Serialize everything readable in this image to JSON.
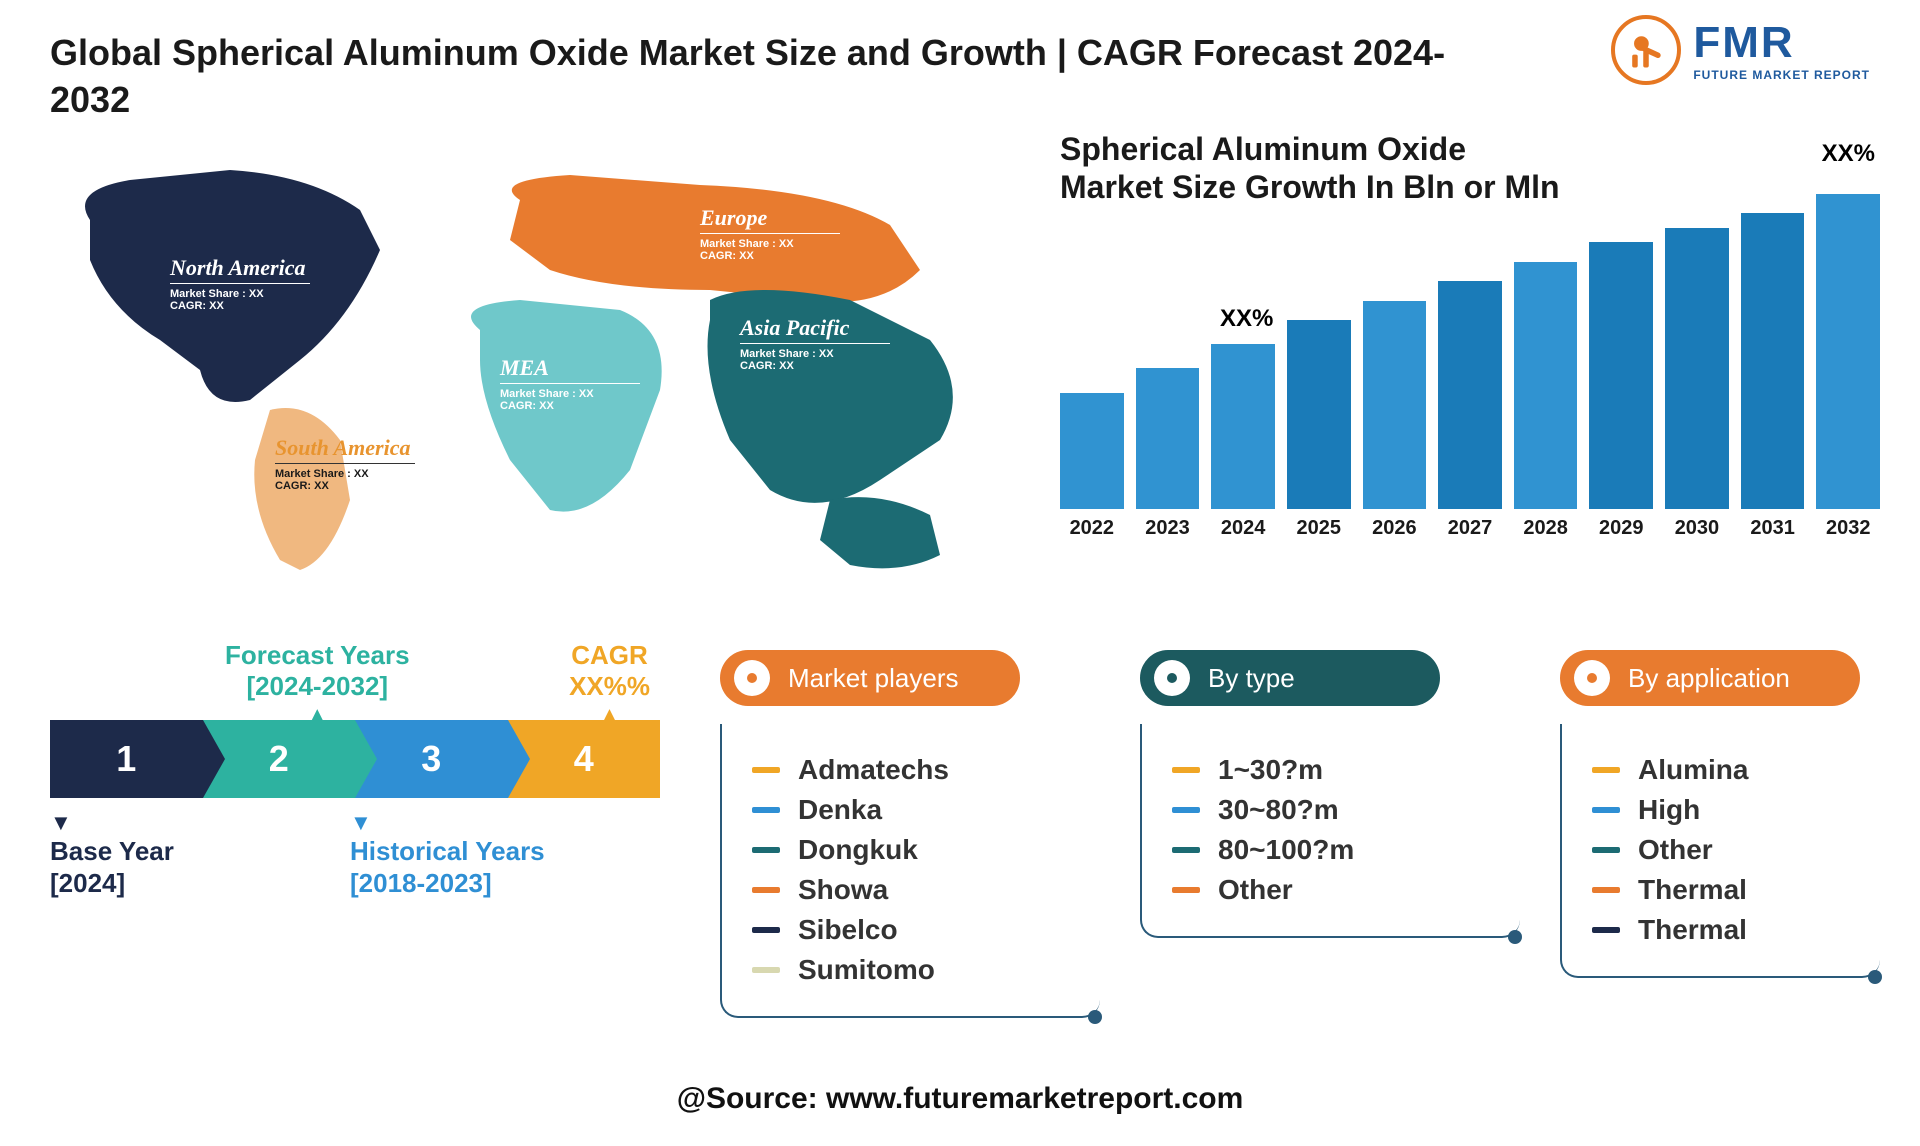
{
  "title": "Global Spherical Aluminum Oxide  Market Size and Growth | CAGR Forecast 2024-2032",
  "logo": {
    "abbr": "FMR",
    "full": "FUTURE MARKET REPORT",
    "accent": "#e67722",
    "text_color": "#1f5a9e"
  },
  "map": {
    "region_label_ms": "Market Share : XX",
    "region_label_cagr": "CAGR: XX",
    "regions": [
      {
        "name": "North America",
        "color": "#1d2a4a"
      },
      {
        "name": "South America",
        "color": "#f0b880"
      },
      {
        "name": "Europe",
        "color": "#e87b2f"
      },
      {
        "name": "MEA",
        "color": "#6fc8ca"
      },
      {
        "name": "Asia Pacific",
        "color": "#1c6b73"
      }
    ]
  },
  "bar_chart": {
    "title": "Spherical Aluminum Oxide Market Size Growth In Bln or Mln",
    "years": [
      "2022",
      "2023",
      "2024",
      "2025",
      "2026",
      "2027",
      "2028",
      "2029",
      "2030",
      "2031",
      "2032"
    ],
    "values": [
      120,
      145,
      170,
      195,
      215,
      235,
      255,
      275,
      290,
      305,
      325
    ],
    "colors": [
      "#3093d1",
      "#3093d1",
      "#3093d1",
      "#1a7bb8",
      "#3093d1",
      "#1a7bb8",
      "#3093d1",
      "#1a7bb8",
      "#1a7bb8",
      "#1a7bb8",
      "#3093d1"
    ],
    "max": 330,
    "callout_2024": "XX%",
    "callout_2032": "XX%",
    "label_fontsize": 20,
    "label_weight": 700
  },
  "timeline": {
    "segments": [
      {
        "num": "1",
        "bg": "#1d2a4a"
      },
      {
        "num": "2",
        "bg": "#2db2a0"
      },
      {
        "num": "3",
        "bg": "#2f8fd4"
      },
      {
        "num": "4",
        "bg": "#f0a626"
      }
    ],
    "annotations": {
      "forecast": {
        "label": "Forecast Years",
        "range": "[2024-2032]",
        "color": "#2db2a0"
      },
      "cagr": {
        "label": "CAGR",
        "value": "XX%%",
        "color": "#f0a626"
      },
      "base": {
        "label": "Base Year",
        "range": "[2024]",
        "color": "#1d2a4a"
      },
      "historical": {
        "label": "Historical Years",
        "range": "[2018-2023]",
        "color": "#2f8fd4"
      }
    }
  },
  "categories": {
    "market_players": {
      "pill_label": "Market players",
      "pill_bg": "#e87b2f",
      "items": [
        "Admatechs",
        "Denka",
        "Dongkuk",
        "Showa",
        "Sibelco",
        "Sumitomo"
      ],
      "tick_colors": [
        "#f0a626",
        "#2f8fd4",
        "#1c6b73",
        "#e87b2f",
        "#1d2a4a",
        "#d8d8b0"
      ]
    },
    "by_type": {
      "pill_label": "By type",
      "pill_bg": "#1c5a5f",
      "items": [
        "1~30?m",
        "30~80?m",
        "80~100?m",
        "Other"
      ],
      "tick_colors": [
        "#f0a626",
        "#2f8fd4",
        "#1c6b73",
        "#e87b2f"
      ]
    },
    "by_application": {
      "pill_label": "By application",
      "pill_bg": "#e87b2f",
      "items": [
        "Alumina",
        "High",
        "Other",
        "Thermal",
        "Thermal"
      ],
      "tick_colors": [
        "#f0a626",
        "#2f8fd4",
        "#1c6b73",
        "#e87b2f",
        "#1d2a4a"
      ]
    }
  },
  "source": "@Source: www.futuremarketreport.com"
}
